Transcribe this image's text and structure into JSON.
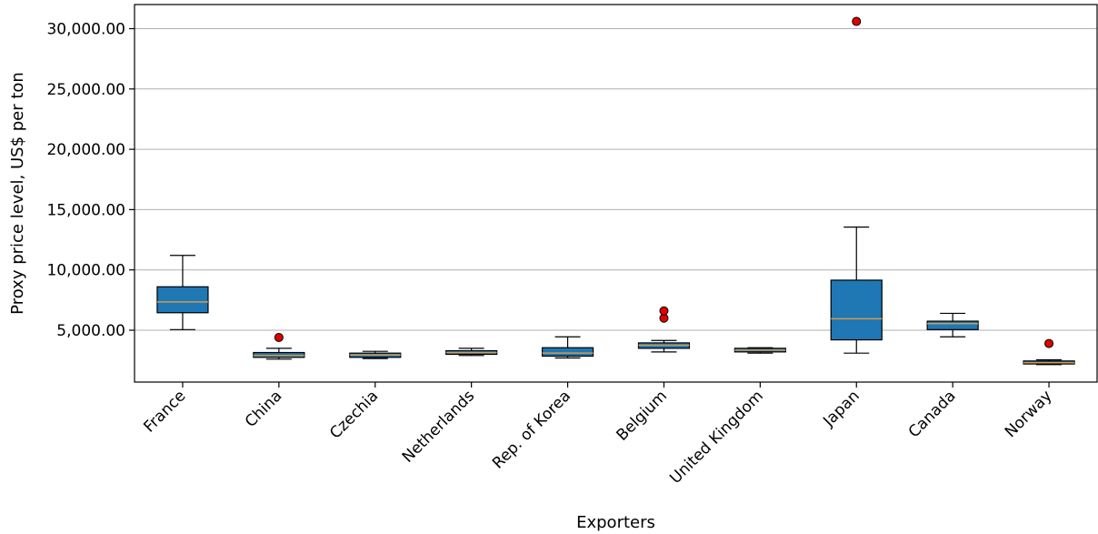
{
  "chart_data": {
    "type": "box",
    "title": "",
    "xlabel": "Exporters",
    "ylabel": "Proxy price level, US$ per ton",
    "ylim": [
      700,
      32000
    ],
    "yticks": [
      5000,
      10000,
      15000,
      20000,
      25000,
      30000
    ],
    "ytick_labels": [
      "5,000.00",
      "10,000.00",
      "15,000.00",
      "20,000.00",
      "25,000.00",
      "30,000.00"
    ],
    "grid": "y",
    "colors": {
      "box_fill": "#1f77b4",
      "median": "#d39a4d",
      "outlier": "#e00000",
      "grid": "#b0b0b0"
    },
    "categories": [
      "France",
      "China",
      "Czechia",
      "Netherlands",
      "Rep. of Korea",
      "Belgium",
      "United Kingdom",
      "Japan",
      "Canada",
      "Norway"
    ],
    "boxes": [
      {
        "category": "France",
        "whislo": 5050,
        "q1": 6450,
        "med": 7350,
        "q3": 8600,
        "whishi": 11200,
        "fliers": []
      },
      {
        "category": "China",
        "whislo": 2600,
        "q1": 2750,
        "med": 2900,
        "q3": 3150,
        "whishi": 3500,
        "fliers": [
          4400
        ]
      },
      {
        "category": "Czechia",
        "whislo": 2650,
        "q1": 2750,
        "med": 2950,
        "q3": 3100,
        "whishi": 3250,
        "fliers": []
      },
      {
        "category": "Netherlands",
        "whislo": 2900,
        "q1": 3000,
        "med": 3150,
        "q3": 3300,
        "whishi": 3500,
        "fliers": []
      },
      {
        "category": "Rep. of Korea",
        "whislo": 2700,
        "q1": 2850,
        "med": 3100,
        "q3": 3550,
        "whishi": 4450,
        "fliers": []
      },
      {
        "category": "Belgium",
        "whislo": 3200,
        "q1": 3500,
        "med": 3750,
        "q3": 3950,
        "whishi": 4150,
        "fliers": [
          6000,
          6600
        ]
      },
      {
        "category": "United Kingdom",
        "whislo": 3100,
        "q1": 3200,
        "med": 3350,
        "q3": 3500,
        "whishi": 3550,
        "fliers": []
      },
      {
        "category": "Japan",
        "whislo": 3100,
        "q1": 4200,
        "med": 5950,
        "q3": 9150,
        "whishi": 13550,
        "fliers": [
          30600
        ]
      },
      {
        "category": "Canada",
        "whislo": 4450,
        "q1": 5050,
        "med": 5550,
        "q3": 5750,
        "whishi": 6400,
        "fliers": []
      },
      {
        "category": "Norway",
        "whislo": 2150,
        "q1": 2200,
        "med": 2300,
        "q3": 2450,
        "whishi": 2550,
        "fliers": [
          3900
        ]
      }
    ]
  }
}
